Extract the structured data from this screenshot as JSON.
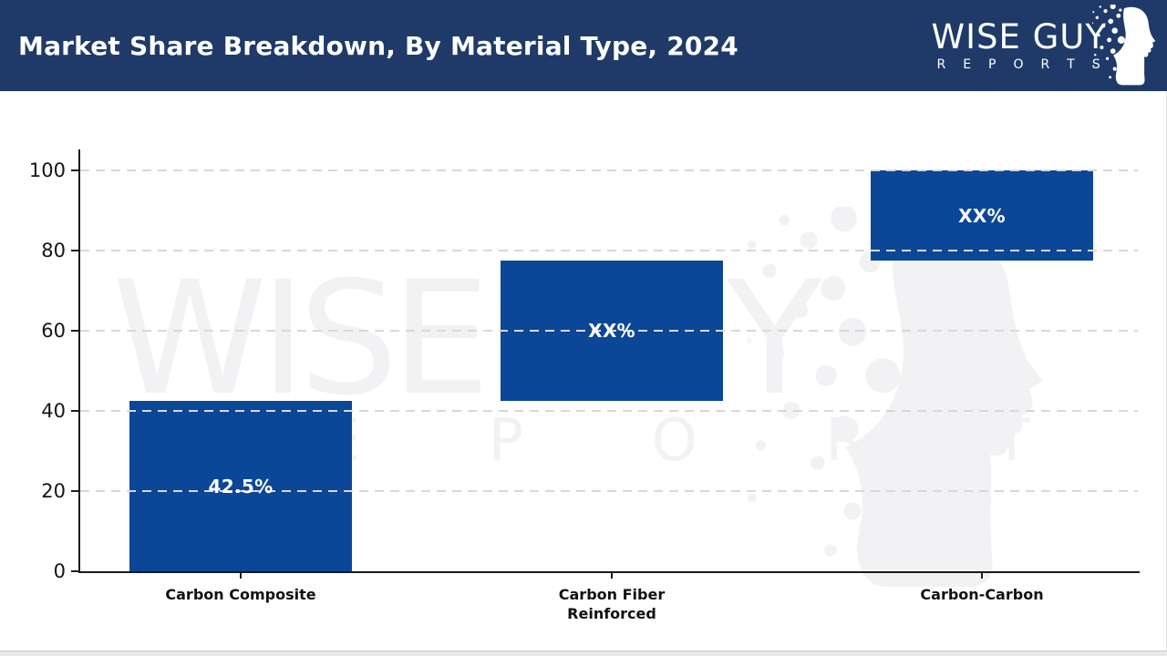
{
  "header": {
    "title": "Market Share Breakdown, By Material Type, 2024",
    "background_color": "#1f3a68",
    "logo": {
      "wordmark": "WISE GUY",
      "subtext": "R E P O R T S"
    }
  },
  "watermark": {
    "wordmark_left": "WISE",
    "letter_y": "Y",
    "subtext_row": "R E P O R T S",
    "color": "#f2f2f4"
  },
  "chart_data": {
    "type": "bar",
    "subtype": "stepped-range-bars",
    "title": "Market Share Breakdown, By Material Type, 2024",
    "categories": [
      "Carbon Composite",
      "Carbon Fiber\nReinforced",
      "Carbon-Carbon"
    ],
    "bars": [
      {
        "category": "Carbon Composite",
        "start": 0,
        "end": 42.5,
        "label": "42.5%"
      },
      {
        "category": "Carbon Fiber Reinforced",
        "start": 42.5,
        "end": 77.5,
        "label": "XX%"
      },
      {
        "category": "Carbon-Carbon",
        "start": 77.5,
        "end": 100,
        "label": "XX%"
      }
    ],
    "y_ticks": [
      0,
      20,
      40,
      60,
      80,
      100
    ],
    "ylim": [
      0,
      100
    ],
    "xlabel": "",
    "ylabel": "",
    "grid": "horizontal-dashed",
    "legend": "none",
    "bar_color": "#0b4796",
    "bar_label_color": "#ffffff",
    "axis_color": "#1a1a1a",
    "gridline_color": "#d8d8d8"
  }
}
